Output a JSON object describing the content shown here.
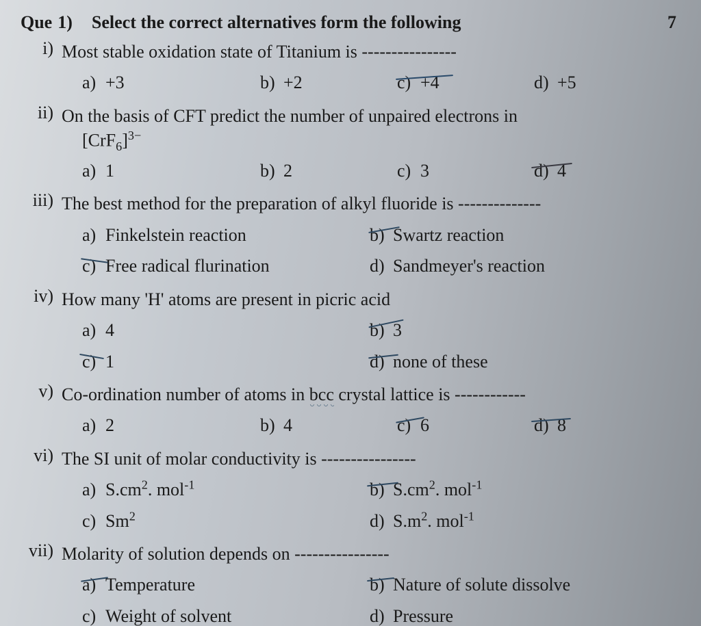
{
  "header": {
    "que_label": "Que",
    "main_num": "1)",
    "heading": "Select the correct alternatives form the following",
    "marks": "7"
  },
  "questions": [
    {
      "idx": "i)",
      "stem": "Most stable oxidation state of Titanium is ----------------",
      "layout": "row4",
      "options": [
        {
          "letter": "a)",
          "text": "+3"
        },
        {
          "letter": "b)",
          "text": "+2"
        },
        {
          "letter": "c)",
          "text": "+4",
          "pen": "pen1"
        },
        {
          "letter": "d)",
          "text": "+5"
        }
      ]
    },
    {
      "idx": "ii)",
      "stem": "On the basis of CFT predict the number of unpaired electrons in",
      "formula_html": "[CrF<span class='sub'>6</span>]<span class='sup'>3&#8722;</span>",
      "layout": "row4",
      "options": [
        {
          "letter": "a)",
          "text": "1"
        },
        {
          "letter": "b)",
          "text": "2"
        },
        {
          "letter": "c)",
          "text": "3"
        },
        {
          "letter": "d)",
          "text": "4",
          "pen": "pen2"
        }
      ]
    },
    {
      "idx": "iii)",
      "stem": "The best method for the preparation of alkyl fluoride is --------------",
      "layout": "row2x2",
      "options": [
        {
          "letter": "a)",
          "text": "Finkelstein reaction"
        },
        {
          "letter": "b)",
          "text": "Swartz reaction",
          "pen": "pen3"
        },
        {
          "letter": "c)",
          "text": "Free radical flurination",
          "pen": "pen4"
        },
        {
          "letter": "d)",
          "text": "Sandmeyer's reaction"
        }
      ]
    },
    {
      "idx": "iv)",
      "stem": "How many 'H' atoms are present in picric acid",
      "layout": "row2x2",
      "options": [
        {
          "letter": "a)",
          "text": "4"
        },
        {
          "letter": "b)",
          "text": "3",
          "pen": "pen5"
        },
        {
          "letter": "c)",
          "text": "1",
          "pen": "pen6"
        },
        {
          "letter": "d)",
          "text": "none of these",
          "pen": "pen7"
        }
      ]
    },
    {
      "idx": "v)",
      "stem_html": "Co-ordination number of atoms in <span class='underline-wavy'>bcc</span> crystal lattice is ------------",
      "layout": "row4",
      "options": [
        {
          "letter": "a)",
          "text": "2"
        },
        {
          "letter": "b)",
          "text": "4"
        },
        {
          "letter": "c)",
          "text": "6",
          "pen": "pen8"
        },
        {
          "letter": "d)",
          "text": "8",
          "pen": "pen9"
        }
      ]
    },
    {
      "idx": "vi)",
      "stem": "The SI unit of molar conductivity is ----------------",
      "layout": "row2x2",
      "options": [
        {
          "letter": "a)",
          "text_html": "S.cm<span class='sup'>2</span>. mol<span class='sup'>-1</span>"
        },
        {
          "letter": "b)",
          "text_html": "S.cm<span class='sup'>2</span>. mol<span class='sup'>-1</span>",
          "pen": "pen10"
        },
        {
          "letter": "c)",
          "text_html": "Sm<span class='sup'>2</span>"
        },
        {
          "letter": "d)",
          "text_html": "S.m<span class='sup'>2</span>. mol<span class='sup'>-1</span>"
        }
      ]
    },
    {
      "idx": "vii)",
      "stem": "Molarity of solution depends on ----------------",
      "layout": "row2x2",
      "options": [
        {
          "letter": "a)",
          "text": "Temperature",
          "pen": "pen11"
        },
        {
          "letter": "b)",
          "text": "Nature of solute dissolve",
          "pen": "pen12"
        },
        {
          "letter": "c)",
          "text": "Weight of solvent"
        },
        {
          "letter": "d)",
          "text": "Pressure"
        }
      ]
    }
  ]
}
